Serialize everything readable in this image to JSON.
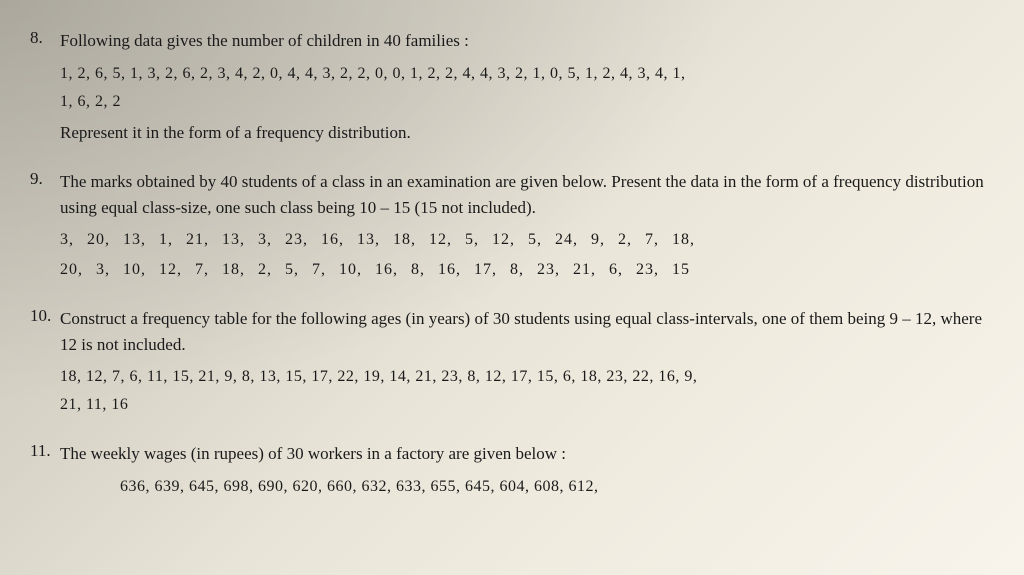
{
  "questions": [
    {
      "number": "8.",
      "intro": "Following data gives the number of children in 40 families :",
      "data_lines": [
        "1, 2, 6, 5, 1, 3, 2, 6, 2, 3, 4, 2, 0, 4, 4, 3, 2, 2, 0, 0, 1, 2, 2, 4, 4, 3, 2, 1, 0, 5, 1, 2, 4, 3, 4, 1,",
        "1, 6, 2, 2"
      ],
      "instruction": "Represent it in the form of a frequency distribution."
    },
    {
      "number": "9.",
      "intro": "The marks obtained by 40 students of a class in an examination are given below. Present the data in the form of a frequency distribution using equal class-size, one such class being 10 – 15 (15 not included).",
      "data_rows": [
        "3,   20,  13,  1,    21,  13,  3,    23,  16,  13,  18,  12,  5,    12,  5,    24,  9,    2,    7,    18,",
        "20,  3,    10,  12,  7,    18,  2,    5,    7,    10,  16,  8,    16,  17,  8,    23,  21,  6,    23,  15"
      ]
    },
    {
      "number": "10.",
      "intro": "Construct a frequency table for the following ages (in years) of 30 students using equal class-intervals, one of them being 9 – 12, where 12 is not included.",
      "data_lines": [
        "18, 12, 7, 6, 11, 15, 21, 9, 8, 13, 15, 17, 22, 19, 14, 21, 23, 8, 12, 17, 15, 6, 18, 23, 22, 16, 9,",
        "21, 11, 16"
      ]
    },
    {
      "number": "11.",
      "intro": "The weekly wages (in rupees) of 30 workers in a factory are given below :",
      "data_lines": [
        "636, 639, 645, 698, 690, 620, 660, 632, 633, 655, 645, 604, 608, 612,"
      ]
    }
  ]
}
